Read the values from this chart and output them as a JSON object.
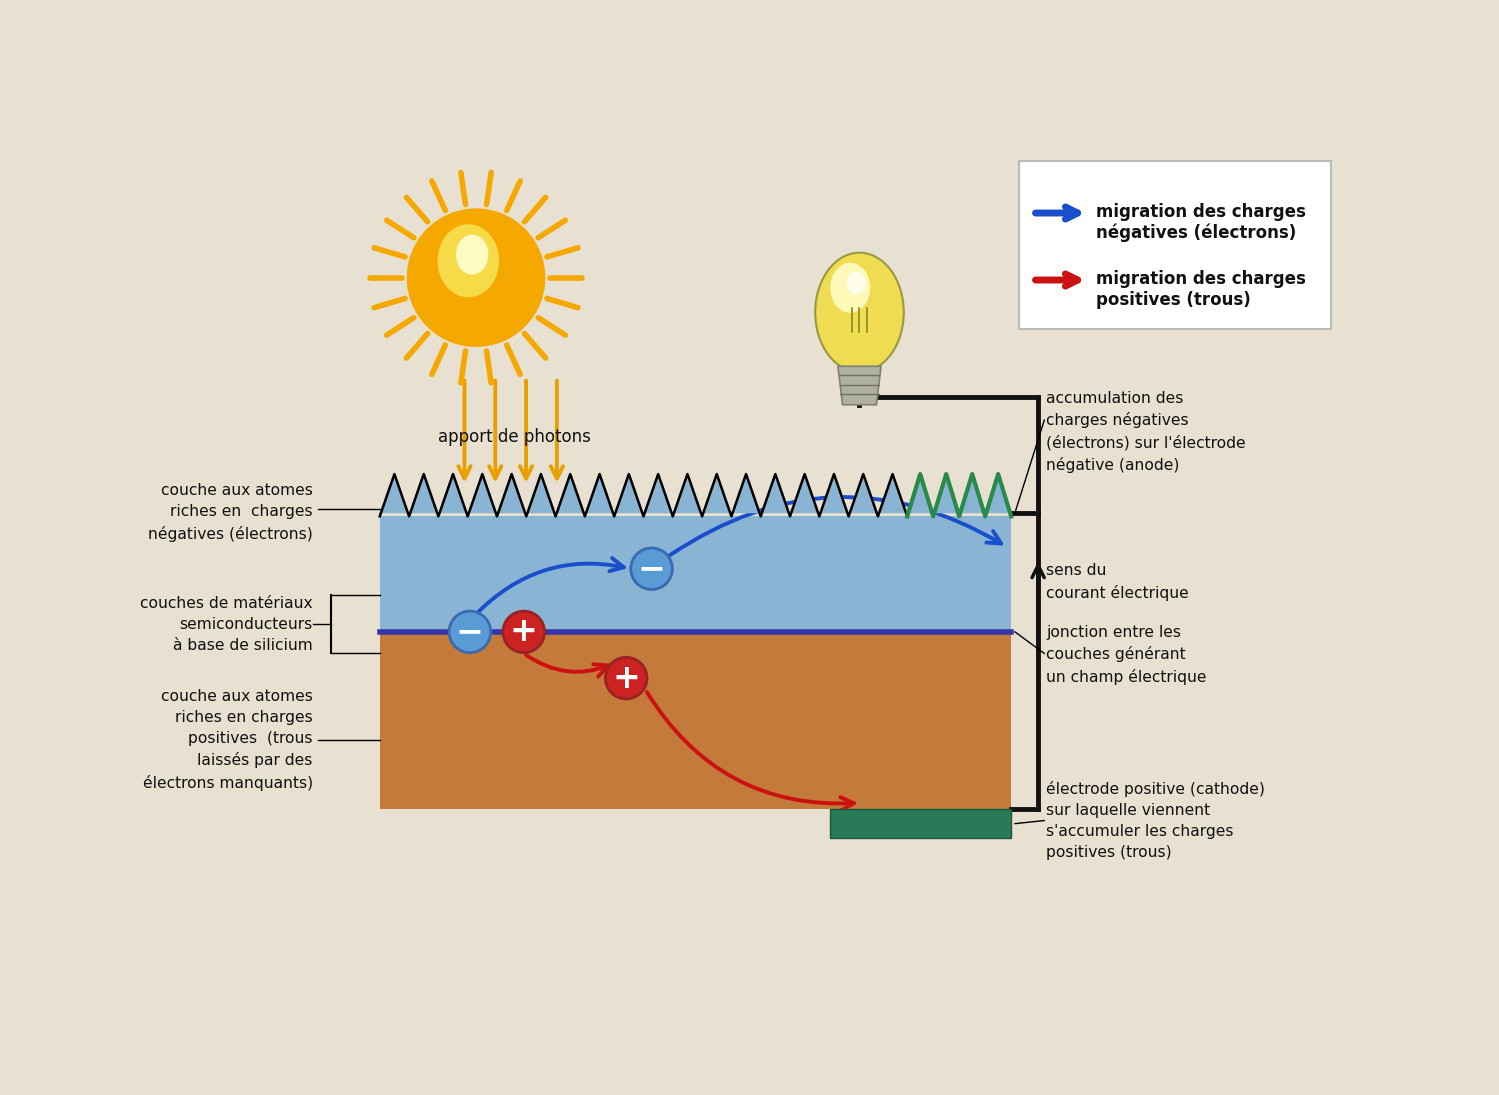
{
  "bg_color": "#e8e0d0",
  "legend_bg": "#ffffff",
  "n_layer_color": "#8ab4d4",
  "p_layer_color": "#c47a3a",
  "junction_color": "#3535aa",
  "sun_color": "#f5a800",
  "photon_color": "#e8a000",
  "electron_color": "#5b9bd5",
  "hole_color": "#cc2222",
  "green_zigzag_color": "#2a8a4a",
  "circuit_color": "#111111",
  "cathode_color": "#2a7a5a",
  "text_color": "#111111",
  "blue_arrow_color": "#1a4fcc",
  "red_arrow_color": "#cc1111",
  "legend_blue": "#1a4fcc",
  "legend_red": "#cc1111",
  "labels": {
    "photons": "apport de photons",
    "n_layer": "couche aux atomes\nriches en  charges\nnégatives (électrons)",
    "semi_layers": "couches de matériaux\nsemiconducteurs\nà base de silicium",
    "p_layer": "couche aux atomes\nriches en charges\npositives  (trous\nlaissés par des\nélectrons manquants)",
    "junction": "jonction entre les\ncouches générant\nun champ électrique",
    "accumulation": "accumulation des\ncharges négatives\n(électrons) sur l'électrode\nnégative (anode)",
    "current": "sens du\ncourant électrique",
    "cathode": "électrode positive (cathode)\nsur laquelle viennent\ns'accumuler les charges\npositives (trous)",
    "legend_neg": "migration des charges\nnégatives (électrons)",
    "legend_pos": "migration des charges\npositives (trous)"
  }
}
